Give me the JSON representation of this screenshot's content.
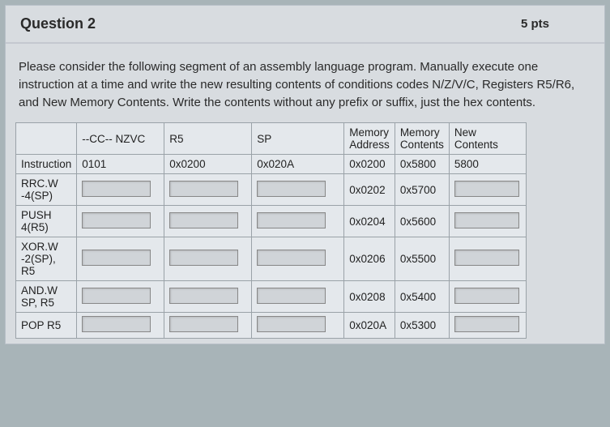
{
  "header": {
    "title": "Question 2",
    "points": "5 pts"
  },
  "prompt": "Please consider the following segment of an assembly language program. Manually execute one instruction at a time and write the new resulting contents of conditions codes N/Z/V/C, Registers R5/R6, and New Memory Contents. Write the contents without any prefix or suffix, just the hex contents.",
  "table": {
    "head": {
      "instr_blank": "",
      "cc": "--CC-- NZVC",
      "r5": "R5",
      "sp": "SP",
      "mem_addr": "Memory Address",
      "mem_cont": "Memory Contents",
      "new_cont": "New Contents"
    },
    "rows": [
      {
        "label": "Instruction",
        "cc": "0101",
        "r5": "0x0200",
        "sp": "0x020A",
        "ma": "0x0200",
        "mc": "0x5800",
        "nc": "5800",
        "inputs": false
      },
      {
        "label": "RRC.W -4(SP)",
        "ma": "0x0202",
        "mc": "0x5700",
        "inputs": true
      },
      {
        "label": "PUSH 4(R5)",
        "ma": "0x0204",
        "mc": "0x5600",
        "inputs": true
      },
      {
        "label": "XOR.W -2(SP), R5",
        "ma": "0x0206",
        "mc": "0x5500",
        "inputs": true
      },
      {
        "label": "AND.W SP, R5",
        "ma": "0x0208",
        "mc": "0x5400",
        "inputs": true
      },
      {
        "label": "POP R5",
        "ma": "0x020A",
        "mc": "0x5300",
        "inputs": true
      }
    ],
    "row_labels": {
      "r0": "Instruction",
      "r1a": "RRC.W",
      "r1b": "-4(SP)",
      "r2a": "PUSH",
      "r2b": "4(R5)",
      "r3a": "XOR.W",
      "r3b": "-2(SP),",
      "r3c": "R5",
      "r4a": "AND.W",
      "r4b": "SP, R5",
      "r5a": "POP R5"
    }
  },
  "colors": {
    "page_bg": "#a8b4b8",
    "card_bg": "#d8dce0",
    "table_bg": "#e4e8ec",
    "border": "#9aa2a8",
    "input_bg": "#d0d4d8",
    "text": "#2a2a2a"
  }
}
